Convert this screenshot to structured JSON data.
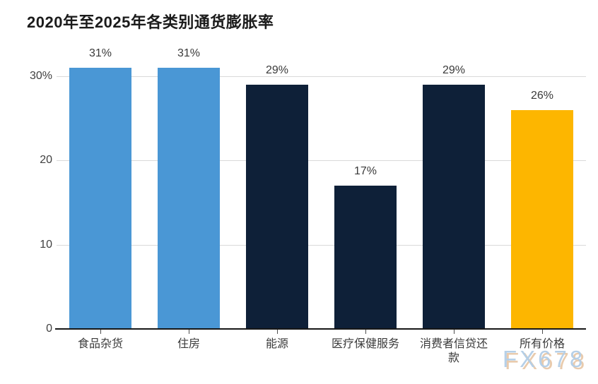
{
  "header": {
    "title": "2020年至2025年各类别通货膨胀率"
  },
  "watermark": {
    "text": "FX678"
  },
  "chart_data": {
    "type": "bar",
    "title": "2020年至2025年各类别通货膨胀率",
    "categories": [
      "食品杂货",
      "住房",
      "能源",
      "医疗保健服务",
      "消费者信贷还款",
      "所有价格"
    ],
    "values": [
      31,
      31,
      29,
      17,
      29,
      26
    ],
    "value_labels": [
      "31%",
      "31%",
      "29%",
      "17%",
      "29%",
      "26%"
    ],
    "bar_colors": [
      "#4a97d5",
      "#4a97d5",
      "#0e2038",
      "#0e2038",
      "#0e2038",
      "#fdb600"
    ],
    "xlabel": "",
    "ylabel": "",
    "ylim": [
      0,
      33
    ],
    "yticks": [
      {
        "value": 0,
        "label": "0"
      },
      {
        "value": 10,
        "label": "10"
      },
      {
        "value": 20,
        "label": "20"
      },
      {
        "value": 30,
        "label": "30%"
      }
    ],
    "grid": true,
    "legend_position": "none"
  },
  "colors": {
    "background": "#ffffff",
    "grid": "#d9d9d9",
    "axis": "#171717",
    "label_text": "#3a3a3a",
    "title_text": "#1b1b1b",
    "blue": "#4a97d5",
    "navy": "#0e2038",
    "orange": "#fdb600",
    "watermark_fill": "#b2cee7",
    "watermark_shadow": "#e3be98"
  }
}
